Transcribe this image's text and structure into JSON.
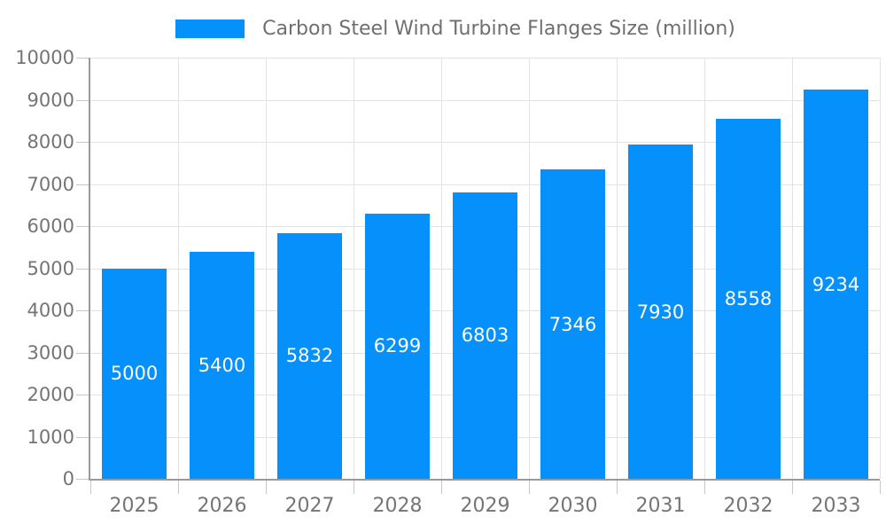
{
  "chart_data": {
    "type": "bar",
    "title": "Carbon Steel Wind Turbine Flanges Size (million)",
    "legend": [
      "Carbon Steel Wind Turbine Flanges Size (million)"
    ],
    "legend_position": "top-center",
    "categories": [
      "2025",
      "2026",
      "2027",
      "2028",
      "2029",
      "2030",
      "2031",
      "2032",
      "2033"
    ],
    "values": [
      5000,
      5400,
      5832,
      6299,
      6803,
      7346,
      7930,
      8558,
      9234
    ],
    "bar_value_labels": [
      "5000",
      "5400",
      "5832",
      "6299",
      "6803",
      "7346",
      "7930",
      "8558",
      "9234"
    ],
    "xlabel": "",
    "ylabel": "",
    "ylim": [
      0,
      10000
    ],
    "yticks": [
      0,
      1000,
      2000,
      3000,
      4000,
      5000,
      6000,
      7000,
      8000,
      9000,
      10000
    ],
    "grid": true,
    "bar_labels_inside": "centered",
    "colors": {
      "bar": "#0590FB",
      "bar_label": "#FFFFFF",
      "axis_line": "#9A9A9A",
      "tick_mark": "#C6C6C6",
      "grid_line": "#E3E3E3",
      "tick_label": "#757575",
      "title": "#6F6F6F",
      "background": "#FFFFFF"
    }
  }
}
